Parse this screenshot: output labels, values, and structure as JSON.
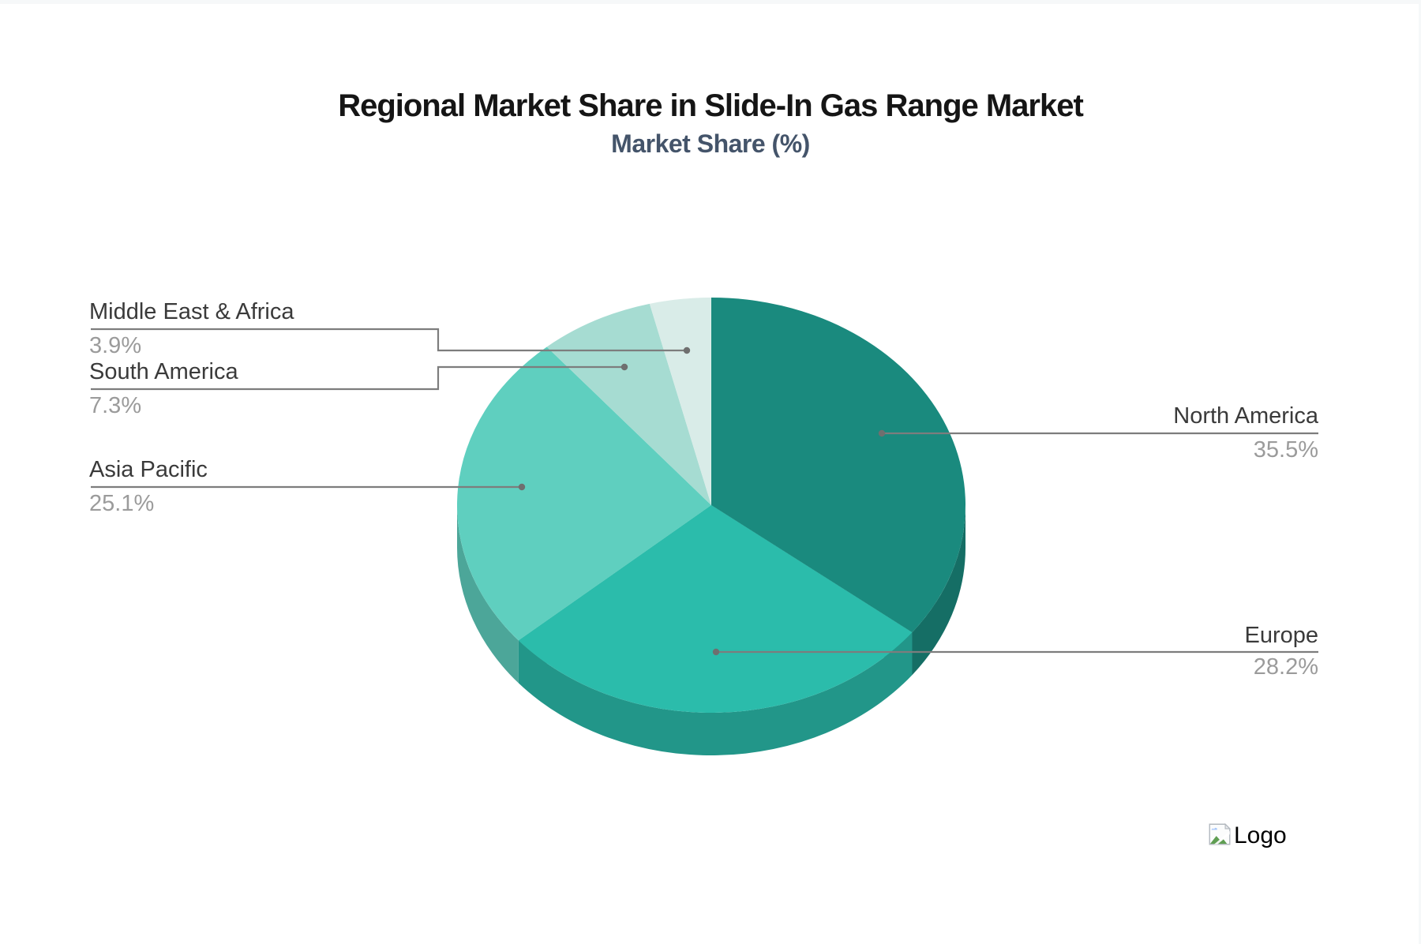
{
  "chart_data": {
    "type": "pie",
    "style": "3d",
    "title": "Regional Market Share in Slide-In Gas Range Market",
    "subtitle": "Market Share (%)",
    "unit": "%",
    "start_angle": "12 o'clock",
    "direction": "clockwise",
    "legend_position": "none (callout labels with leader lines)",
    "slices": [
      {
        "name": "North America",
        "value": 35.5,
        "label": "35.5%",
        "color": "#1a8a7e"
      },
      {
        "name": "Europe",
        "value": 28.2,
        "label": "28.2%",
        "color": "#2bbcab"
      },
      {
        "name": "Asia Pacific",
        "value": 25.1,
        "label": "25.1%",
        "color": "#5fcfbf"
      },
      {
        "name": "South America",
        "value": 7.3,
        "label": "7.3%",
        "color": "#a6dcd2"
      },
      {
        "name": "Middle East & Africa",
        "value": 3.9,
        "label": "3.9%",
        "color": "#d9ece8"
      }
    ],
    "leader_line_color": "#7d7d7d",
    "label_name_color": "#3a3a3a",
    "label_value_color": "#9b9b9b"
  },
  "logo": {
    "alt": "Logo"
  }
}
